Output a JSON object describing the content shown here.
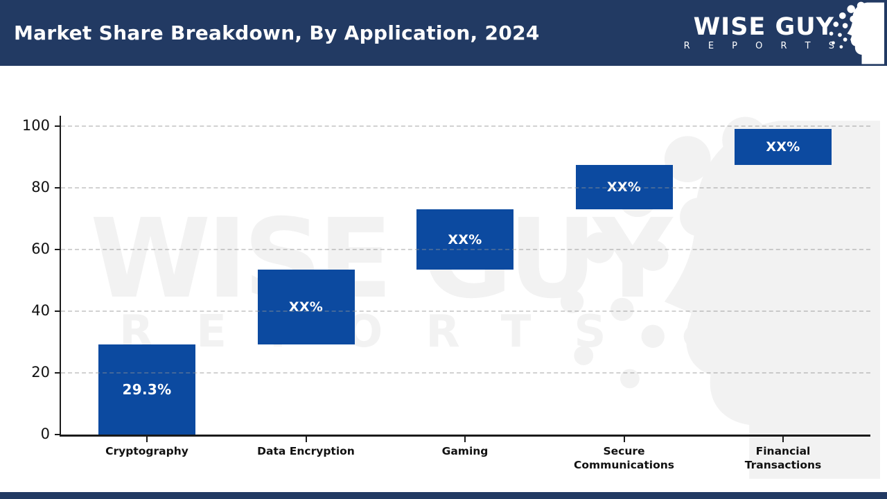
{
  "header": {
    "title": "Market Share Breakdown, By Application, 2024",
    "bg_color": "#223a63",
    "logo": {
      "line1": "WISE GUY",
      "line2": "R E P O R T S"
    }
  },
  "watermark": {
    "line1": "WISE GUY",
    "line2": "REPORTS"
  },
  "footer": {
    "bg_color": "#223a63"
  },
  "chart_data": {
    "type": "bar",
    "subtype": "waterfall",
    "title": "Market Share Breakdown, By Application, 2024",
    "categories": [
      "Cryptography",
      "Data Encryption",
      "Gaming",
      "Secure Communications",
      "Financial Transactions"
    ],
    "segments": [
      {
        "category": "Cryptography",
        "start": 0,
        "end": 29.3,
        "label": "29.3%"
      },
      {
        "category": "Data Encryption",
        "start": 29.3,
        "end": 53.5,
        "label": "XX%"
      },
      {
        "category": "Gaming",
        "start": 53.5,
        "end": 73.0,
        "label": "XX%"
      },
      {
        "category": "Secure Communications",
        "start": 73.0,
        "end": 87.5,
        "label": "XX%"
      },
      {
        "category": "Financial Transactions",
        "start": 87.5,
        "end": 99.0,
        "label": "XX%"
      }
    ],
    "yticks": [
      0,
      20,
      40,
      60,
      80,
      100
    ],
    "ylim": [
      0,
      103
    ],
    "xlabel": "",
    "ylabel": "",
    "grid": true,
    "grid_style": "dashed",
    "legend": false,
    "bar_color": "#0c4aa0",
    "bar_label_color": "#ffffff"
  }
}
